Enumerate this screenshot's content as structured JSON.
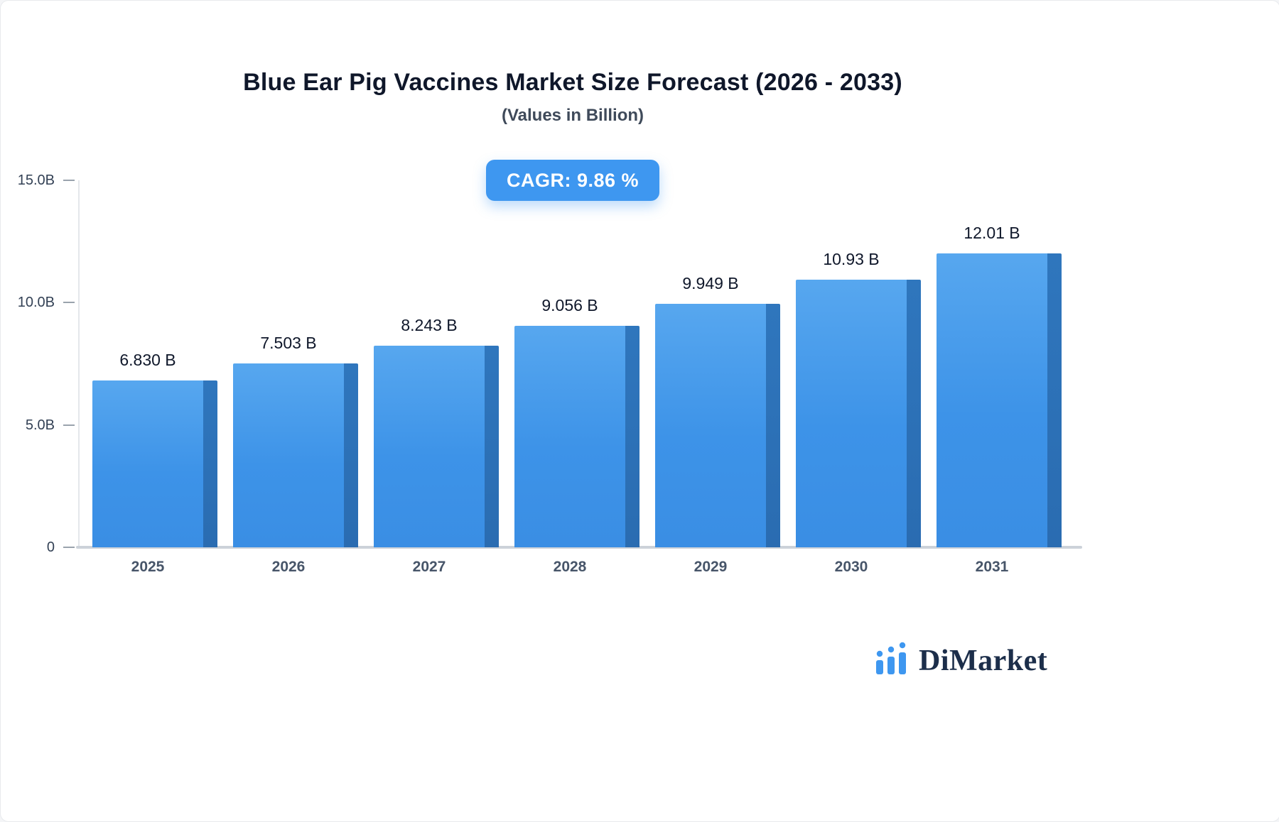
{
  "chart_data": {
    "type": "bar",
    "title": "Blue Ear Pig Vaccines Market Size Forecast (2026 - 2033)",
    "subtitle": "(Values in Billion)",
    "cagr_badge": "CAGR: 9.86 %",
    "categories": [
      "2025",
      "2026",
      "2027",
      "2028",
      "2029",
      "2030",
      "2031"
    ],
    "values": [
      6.83,
      7.503,
      8.243,
      9.056,
      9.949,
      10.93,
      12.01
    ],
    "value_labels": [
      "6.830 B",
      "7.503 B",
      "8.243 B",
      "9.056 B",
      "9.949 B",
      "10.93 B",
      "12.01 B"
    ],
    "ylabel": "",
    "xlabel": "",
    "ylim": [
      0,
      15
    ],
    "yticks": [
      {
        "value": 15,
        "label": "15.0B"
      },
      {
        "value": 10,
        "label": "10.0B"
      },
      {
        "value": 5,
        "label": "5.0B"
      },
      {
        "value": 0,
        "label": "0"
      }
    ],
    "grid": false,
    "legend": false,
    "bar_color": "#3d93e8",
    "bar_side_color": "#2a6cb1",
    "badge_color": "#3e97f0"
  },
  "branding": {
    "logo_text": "DiMarket",
    "logo_icon": "bar-chart-icon",
    "logo_text_color": "#1c2e4a",
    "logo_icon_color": "#3e97f0"
  }
}
